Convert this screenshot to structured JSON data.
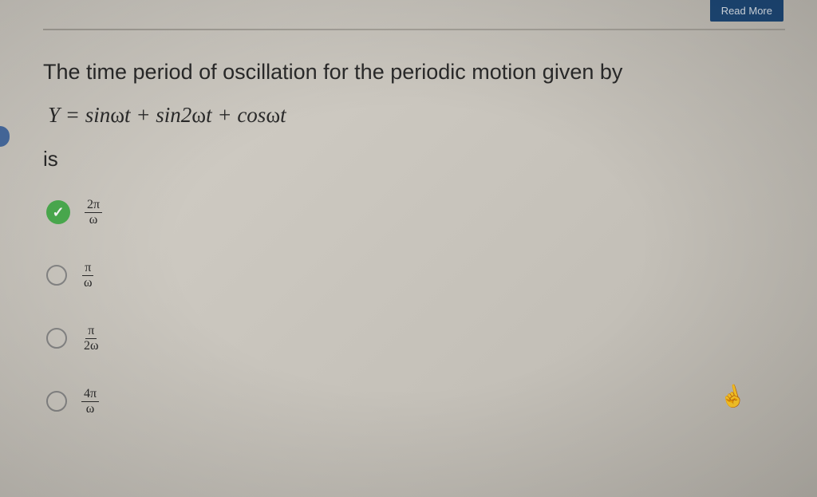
{
  "header": {
    "read_more_label": "Read More"
  },
  "question": {
    "prompt": "The time period of oscillation for the periodic motion given by",
    "equation": "Y = sinωt + sin2ωt + cosωt",
    "connector": "is"
  },
  "options": [
    {
      "numerator": "2π",
      "denominator": "ω",
      "selected": true
    },
    {
      "numerator": "π",
      "denominator": "ω",
      "selected": false
    },
    {
      "numerator": "π",
      "denominator": "2ω",
      "selected": false
    },
    {
      "numerator": "4π",
      "denominator": "ω",
      "selected": false
    }
  ],
  "colors": {
    "background_light": "#d4d0c8",
    "background_dark": "#bcb8b0",
    "button_bg": "#1e4a7a",
    "button_text": "#e0e8f0",
    "correct_green": "#4caf50",
    "text": "#2a2a2a",
    "radio_border": "#888888",
    "left_marker": "#4a6fa5"
  },
  "typography": {
    "question_fontsize": 27,
    "equation_fontsize": 27,
    "option_fontsize": 16
  }
}
